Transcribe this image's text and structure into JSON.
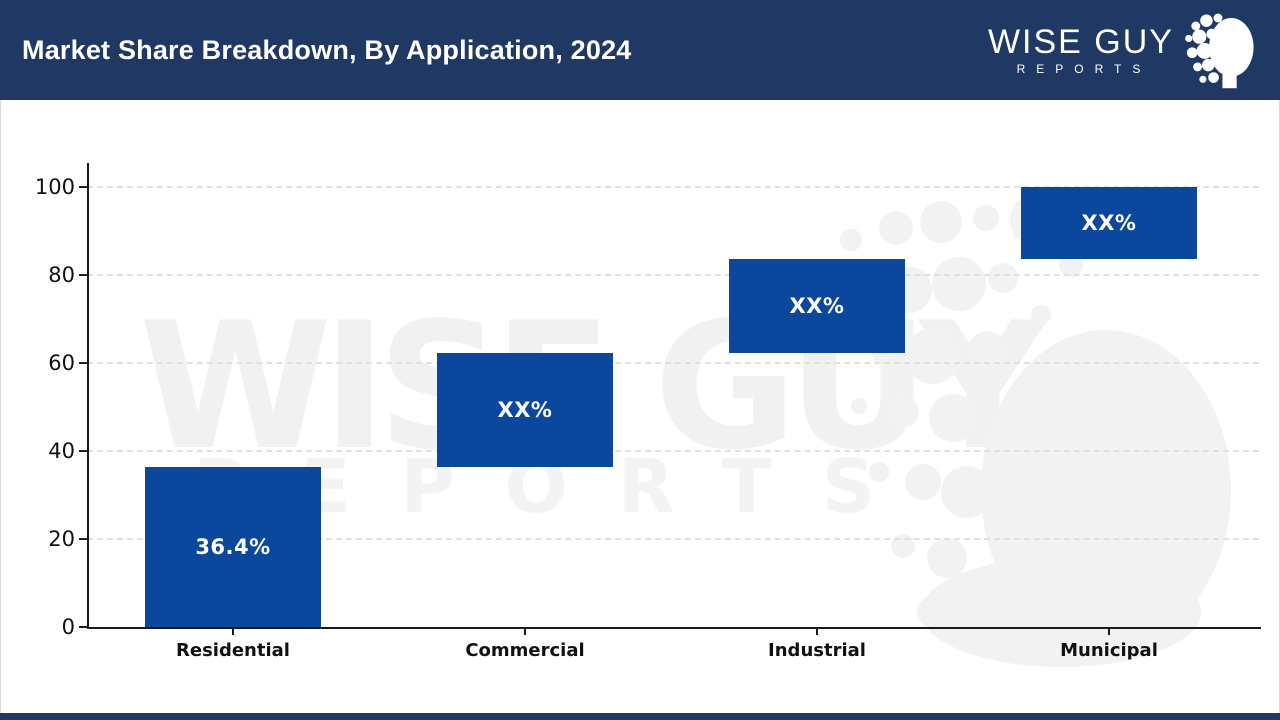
{
  "header": {
    "title": "Market Share Breakdown, By Application, 2024"
  },
  "logo": {
    "line1": "WISE GUY",
    "line2": "REPORTS"
  },
  "watermark": {
    "line1": "WISE GUY",
    "line2": "REPORTS"
  },
  "chart_data": {
    "type": "bar",
    "variant": "waterfall",
    "title": "Market Share Breakdown, By Application, 2024",
    "categories": [
      "Residential",
      "Commercial",
      "Industrial",
      "Municipal"
    ],
    "segments": [
      {
        "category": "Residential",
        "start": 0,
        "end": 36.4,
        "label": "36.4%",
        "estimated_size": 36.4
      },
      {
        "category": "Commercial",
        "start": 36.4,
        "end": 62.2,
        "label": "XX%",
        "estimated_size": 25.8
      },
      {
        "category": "Industrial",
        "start": 62.2,
        "end": 83.6,
        "label": "XX%",
        "estimated_size": 21.4
      },
      {
        "category": "Municipal",
        "start": 83.6,
        "end": 100,
        "label": "XX%",
        "estimated_size": 16.4
      }
    ],
    "yticks": [
      0,
      20,
      40,
      60,
      80,
      100
    ],
    "ylim": [
      0,
      105
    ],
    "xlabel": "",
    "ylabel": "",
    "grid": "horizontal-dashed",
    "legend": "none",
    "bar_color": "#0a479d",
    "bar_label_color": "#ffffff"
  },
  "colors": {
    "header_bg": "#1f3864",
    "footer_bg": "#1f3864",
    "bar": "#0a479d",
    "grid": "#e0e0e0",
    "axis": "#1a1a1a",
    "frame": "#d9d9d9",
    "watermark": "#f1f1f1"
  }
}
